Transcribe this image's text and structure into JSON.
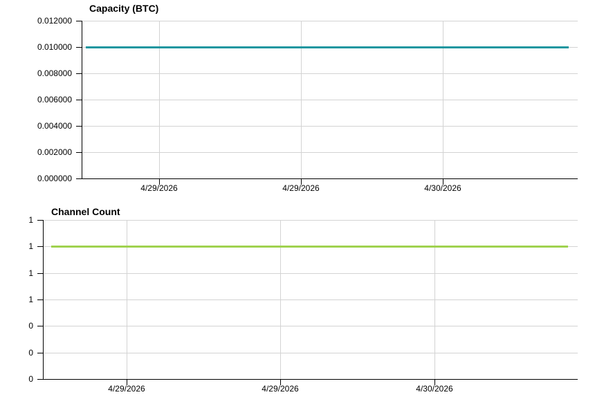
{
  "page": {
    "background": "#ffffff"
  },
  "style": {
    "grid_color": "#d3d3d3",
    "axis_color": "#000000",
    "text_color": "#000000"
  },
  "chart_data": [
    {
      "type": "line",
      "title": "Capacity (BTC)",
      "xlabel": "",
      "ylabel": "",
      "ylim": [
        0,
        0.012
      ],
      "grid": true,
      "legend_position": "none",
      "y_tick_labels": [
        "0.012000",
        "0.010000",
        "0.008000",
        "0.006000",
        "0.004000",
        "0.002000",
        "0.000000"
      ],
      "x_tick_labels": [
        "4/29/2026",
        "4/29/2026",
        "4/30/2026"
      ],
      "series": [
        {
          "name": "Capacity (BTC)",
          "constant_value": 0.01,
          "x": [
            "4/29/2026",
            "4/29/2026",
            "4/30/2026"
          ],
          "values": [
            0.01,
            0.01,
            0.01
          ],
          "color": "#1b96a0"
        }
      ]
    },
    {
      "type": "line",
      "title": "Channel Count",
      "xlabel": "",
      "ylabel": "",
      "ylim": [
        0,
        1.2
      ],
      "grid": true,
      "legend_position": "none",
      "y_tick_labels": [
        "1",
        "1",
        "1",
        "1",
        "0",
        "0",
        "0"
      ],
      "x_tick_labels": [
        "4/29/2026",
        "4/29/2026",
        "4/30/2026"
      ],
      "series": [
        {
          "name": "Channel Count",
          "constant_value": 1,
          "x": [
            "4/29/2026",
            "4/29/2026",
            "4/30/2026"
          ],
          "values": [
            1,
            1,
            1
          ],
          "color": "#9fd24e"
        }
      ]
    }
  ]
}
